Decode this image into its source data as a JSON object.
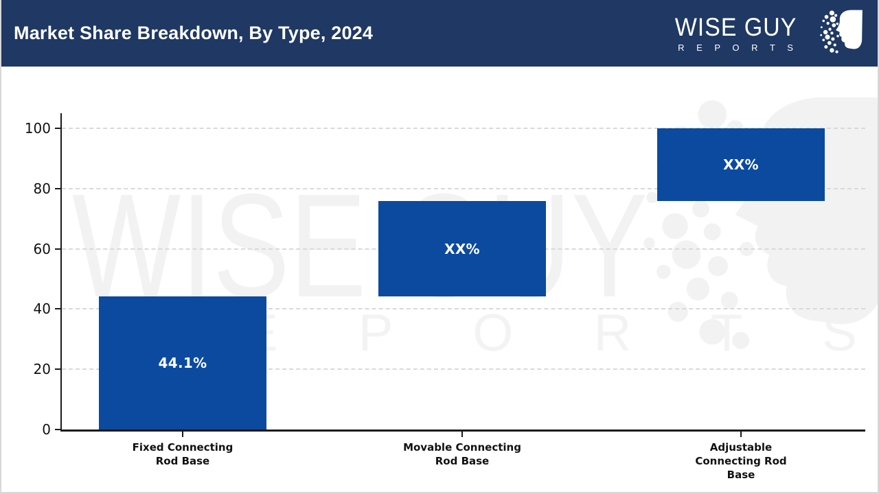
{
  "header": {
    "title": "Market Share Breakdown, By Type, 2024",
    "logo": {
      "line1": "WISE GUY",
      "line2": "R E P O R T S"
    }
  },
  "watermark": {
    "big_text": "WISE GUY",
    "sub_text": "R E P O R T S"
  },
  "colors": {
    "header_bg": "#1f3864",
    "bar": "#0b4a9f",
    "axis": "#1a1a1a",
    "grid": "#d9d9d9",
    "watermark": "#f2f2f2",
    "tick_text": "#111111",
    "title_text": "#ffffff"
  },
  "chart_data": {
    "type": "bar",
    "subtype": "waterfall",
    "title": "Market Share Breakdown, By Type, 2024",
    "categories": [
      "Fixed Connecting Rod Base",
      "Movable Connecting Rod Base",
      "Adjustable Connecting Rod Base"
    ],
    "category_lines": [
      [
        "Fixed Connecting",
        "Rod Base"
      ],
      [
        "Movable Connecting",
        "Rod Base"
      ],
      [
        "Adjustable",
        "Connecting Rod",
        "Base"
      ]
    ],
    "bars": [
      {
        "category": "Fixed Connecting Rod Base",
        "label": "44.1%",
        "start": 0,
        "end": 44.1
      },
      {
        "category": "Movable Connecting Rod Base",
        "label": "XX%",
        "start": 44.1,
        "end": 75.9
      },
      {
        "category": "Adjustable Connecting Rod Base",
        "label": "XX%",
        "start": 75.9,
        "end": 100
      }
    ],
    "xlabel": "",
    "ylabel": "",
    "ylim": [
      0,
      105
    ],
    "yticks": [
      0,
      20,
      40,
      60,
      80,
      100
    ],
    "grid": "horizontal-dashed",
    "legend": "none",
    "bar_color": "#0b4a9f"
  }
}
